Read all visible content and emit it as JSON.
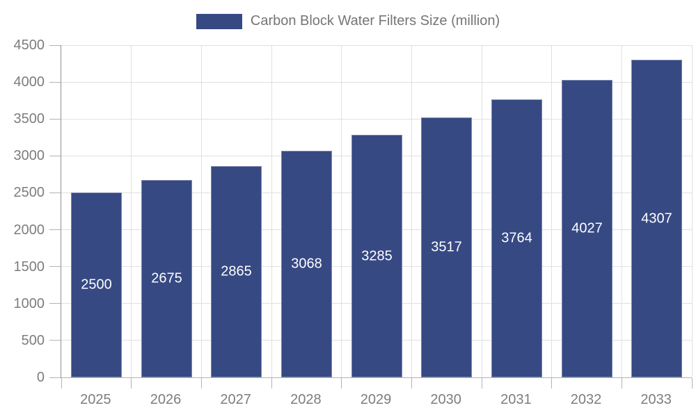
{
  "legend": {
    "swatch_color": "#364983"
  },
  "colors": {
    "bar": "#364983",
    "grid": "#e0e0e0",
    "axis_left": "#8f8f8f",
    "axis_bottom": "#b3b3b3",
    "tick": "#b3b3b3",
    "tick_label": "#7d7d7d",
    "legend_text": "#757575",
    "value_label": "#ffffff"
  },
  "chart_data": {
    "type": "bar",
    "title": "Carbon Block Water Filters Size (million)",
    "categories": [
      "2025",
      "2026",
      "2027",
      "2028",
      "2029",
      "2030",
      "2031",
      "2032",
      "2033"
    ],
    "values": [
      2500,
      2675,
      2865,
      3068,
      3285,
      3517,
      3764,
      4027,
      4307
    ],
    "xlabel": "",
    "ylabel": "",
    "ylim": [
      0,
      4500
    ],
    "ytick_step": 500,
    "grid": true,
    "legend_position": "top",
    "value_labels": "inside-center"
  }
}
